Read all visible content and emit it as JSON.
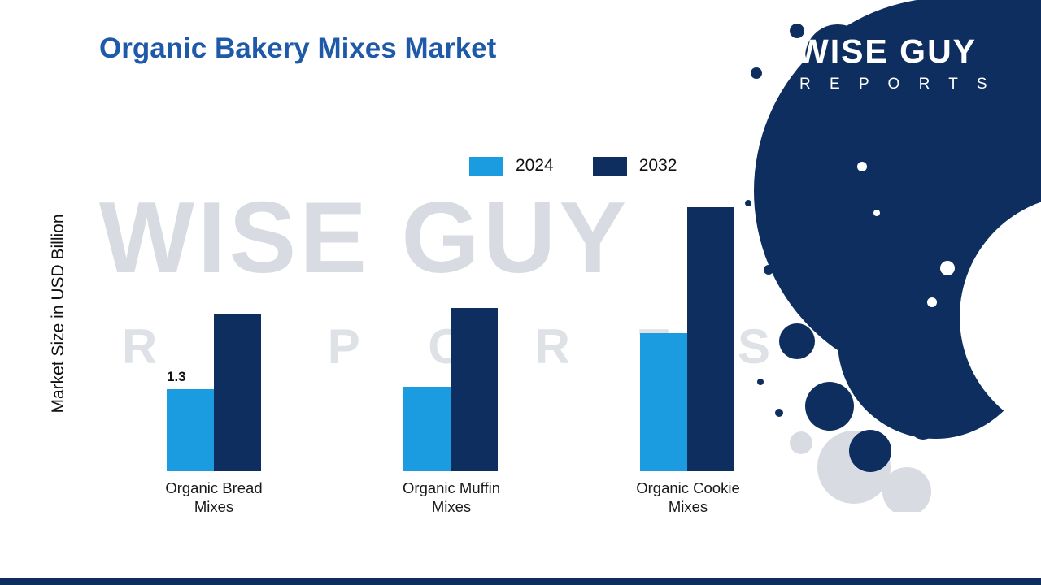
{
  "page": {
    "title": "Organic Bakery Mixes Market"
  },
  "brand": {
    "name": "WISE GUY",
    "subtitle": "R E P O R T S"
  },
  "watermark": {
    "line1": "WISE GUY",
    "line2": "R E P O R T S"
  },
  "chart_data": {
    "type": "bar",
    "title": "Organic Bakery Mixes Market",
    "xlabel": "",
    "ylabel": "Market Size in USD Billion",
    "categories": [
      "Organic Bread Mixes",
      "Organic Muffin Mixes",
      "Organic Cookie Mixes"
    ],
    "series": [
      {
        "name": "2024",
        "color": "#1B9CE0",
        "values": [
          1.3,
          1.35,
          2.2
        ]
      },
      {
        "name": "2032",
        "color": "#0D2E5E",
        "values": [
          2.5,
          2.6,
          4.2
        ]
      }
    ],
    "bar_label": "1.3",
    "ylim": [
      0,
      4.5
    ],
    "grid": false,
    "legend_position": "top-center"
  },
  "colors": {
    "title_blue": "#1E5AA8",
    "accent_light_blue": "#1B9CE0",
    "brand_navy": "#0D2E5E",
    "watermark_gray": "#D8DCE2"
  }
}
